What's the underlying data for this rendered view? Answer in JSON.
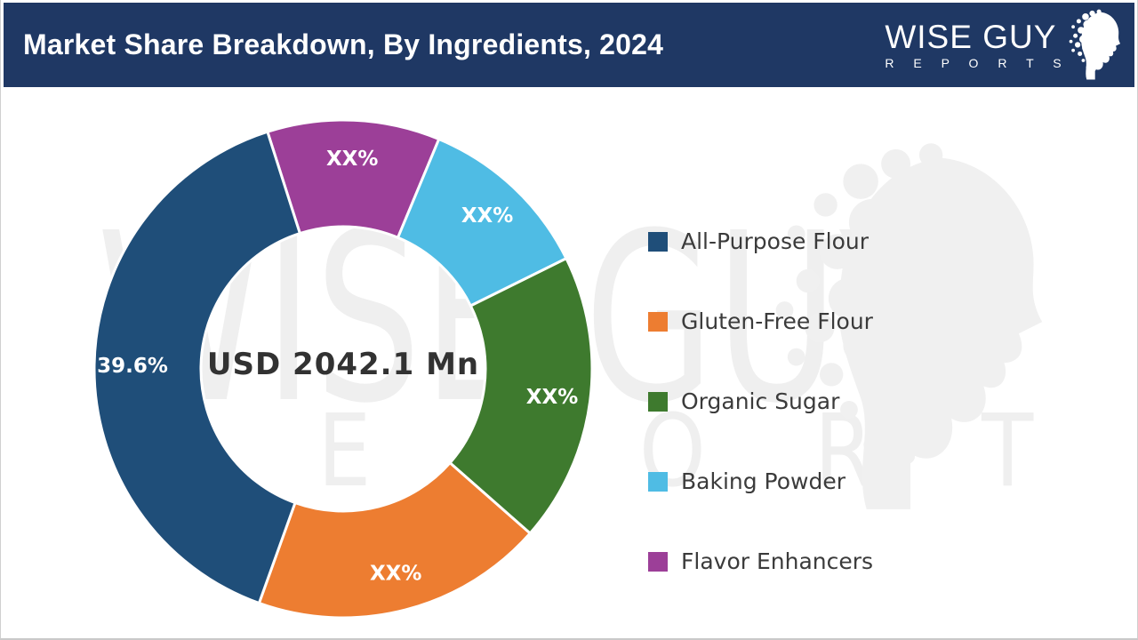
{
  "header": {
    "title": "Market Share Breakdown, By Ingredients, 2024",
    "bg_color": "#1F3864",
    "logo": {
      "line1": "WISE GUY",
      "line2": "R E P O R T S"
    }
  },
  "watermark": {
    "line1": "WISE GUY",
    "line2": "R E P O R T S"
  },
  "chart_data": {
    "type": "pie",
    "variant": "donut",
    "title": "Market Share Breakdown, By Ingredients, 2024",
    "center_label": "USD 2042.1 Mn",
    "start_angle_deg": -17.7,
    "legend_position": "right",
    "series": [
      {
        "name": "Flavor Enhancers",
        "label": "XX%",
        "percent": 11.2,
        "color": "#9C3F98"
      },
      {
        "name": "Baking Powder",
        "label": "XX%",
        "percent": 11.4,
        "color": "#4FBCE4"
      },
      {
        "name": "Organic Sugar",
        "label": "XX%",
        "percent": 18.8,
        "color": "#3E7A2E"
      },
      {
        "name": "Gluten-Free Flour",
        "label": "XX%",
        "percent": 19.0,
        "color": "#ED7D31"
      },
      {
        "name": "All-Purpose Flour",
        "label": "39.6%",
        "percent": 39.6,
        "color": "#1F4E79"
      }
    ],
    "legend_order": [
      "All-Purpose Flour",
      "Gluten-Free Flour",
      "Organic Sugar",
      "Baking Powder",
      "Flavor Enhancers"
    ]
  }
}
